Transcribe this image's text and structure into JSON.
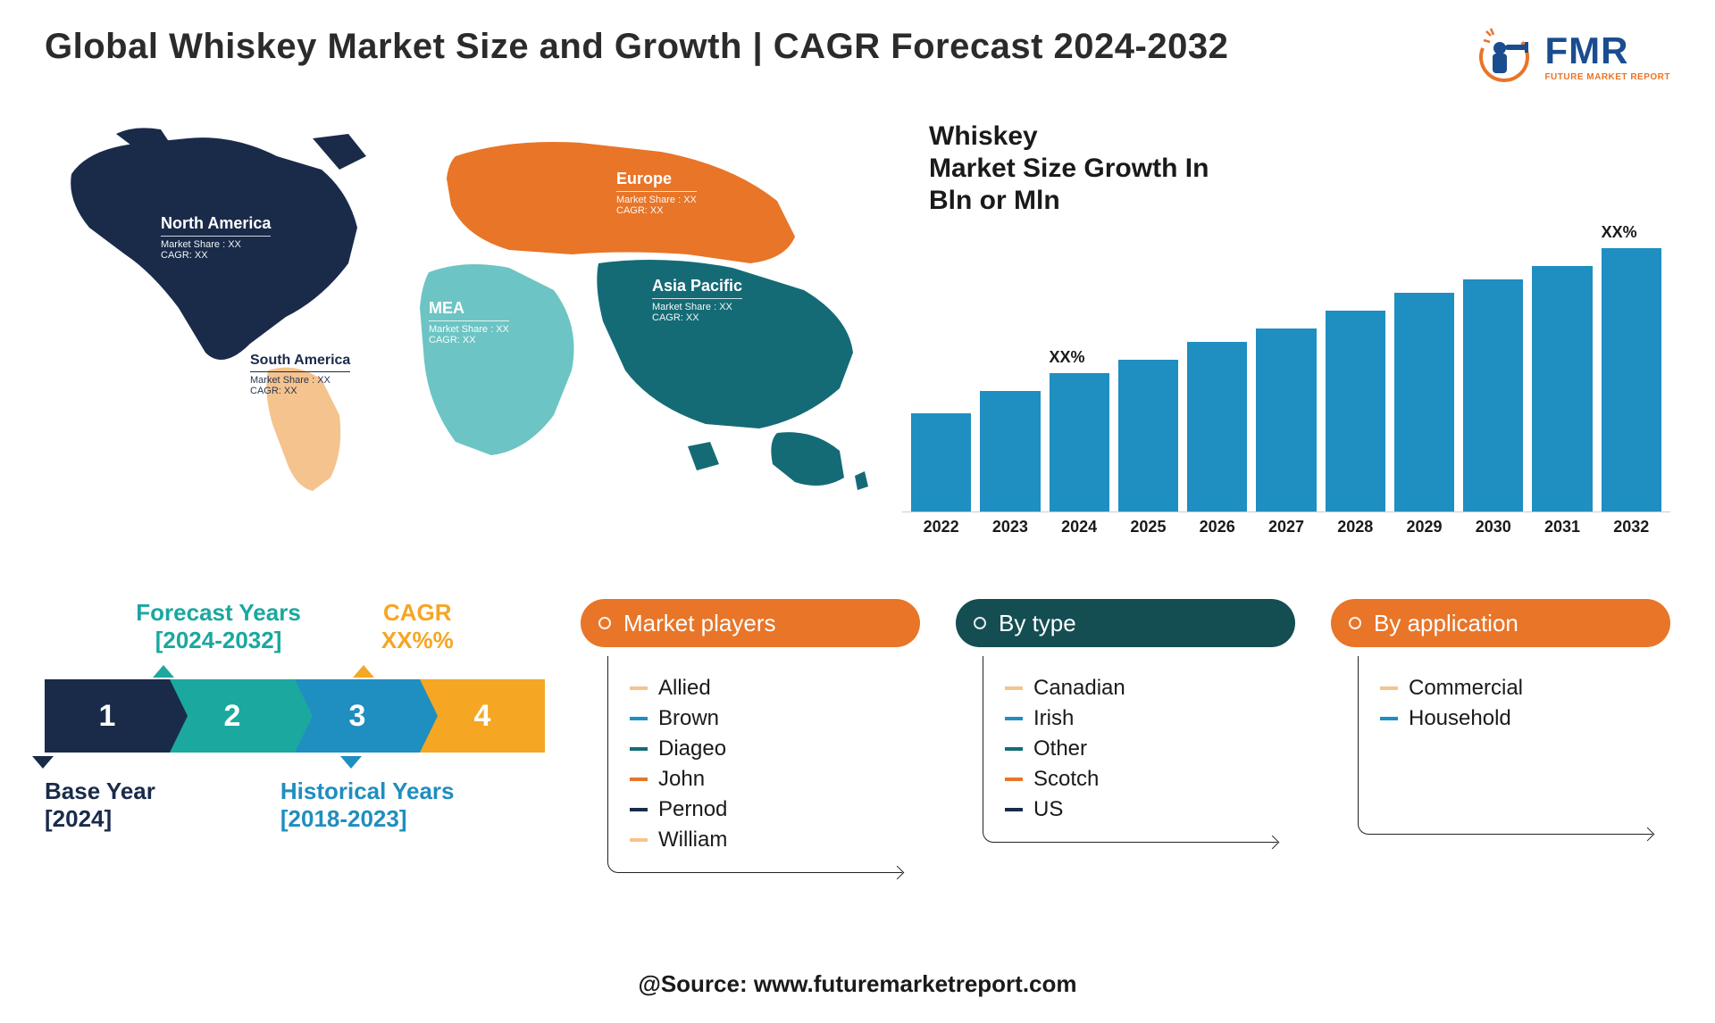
{
  "title": "Global Whiskey  Market Size and Growth | CAGR Forecast 2024-2032",
  "logo": {
    "fmr": "FMR",
    "sub": "FUTURE MARKET REPORT",
    "accent": "#e87528",
    "blue": "#1a4d8f"
  },
  "map": {
    "regions": [
      {
        "key": "na",
        "name": "North America",
        "share": "Market Share : XX",
        "cagr": "CAGR: XX",
        "color": "#1a2b4a",
        "nameFont": 18
      },
      {
        "key": "sa",
        "name": "South America",
        "share": "Market Share : XX",
        "cagr": "CAGR: XX",
        "color": "#f5c38e",
        "nameFont": 16
      },
      {
        "key": "eu",
        "name": "Europe",
        "share": "Market Share : XX",
        "cagr": "CAGR: XX",
        "color": "#e87528",
        "nameFont": 18
      },
      {
        "key": "mea",
        "name": "MEA",
        "share": "Market Share : XX",
        "cagr": "CAGR: XX",
        "color": "#6dc4c4",
        "nameFont": 18
      },
      {
        "key": "ap",
        "name": "Asia Pacific",
        "share": "Market Share : XX",
        "cagr": "CAGR: XX",
        "color": "#146b75",
        "nameFont": 18
      }
    ]
  },
  "chart": {
    "title_l1": "Whiskey",
    "title_l2": "Market Size Growth In",
    "title_l3": "Bln or Mln",
    "type": "bar",
    "categories": [
      "2022",
      "2023",
      "2024",
      "2025",
      "2026",
      "2027",
      "2028",
      "2029",
      "2030",
      "2031",
      "2032"
    ],
    "values": [
      110,
      135,
      155,
      170,
      190,
      205,
      225,
      245,
      260,
      275,
      295
    ],
    "ylim": [
      0,
      300
    ],
    "bar_color": "#1f8ec0",
    "annot_2024": "XX%",
    "annot_2032": "XX%",
    "label_fontsize": 18
  },
  "timeline": {
    "forecast_label": "Forecast Years",
    "forecast_range": "[2024-2032]",
    "cagr_label": "CAGR",
    "cagr_value": "XX%%",
    "nums": [
      "1",
      "2",
      "3",
      "4"
    ],
    "colors": [
      "#1a2b4a",
      "#1aa89f",
      "#1f8ec0",
      "#f5a623"
    ],
    "base_label": "Base Year",
    "base_range": "[2024]",
    "hist_label": "Historical Years",
    "hist_range": "[2018-2023]"
  },
  "sections": {
    "players": {
      "title": "Market players",
      "items": [
        {
          "label": "Allied",
          "color": "#f5c38e"
        },
        {
          "label": "Brown",
          "color": "#1f8ec0"
        },
        {
          "label": "Diageo",
          "color": "#146b75"
        },
        {
          "label": "John",
          "color": "#e87528"
        },
        {
          "label": "Pernod",
          "color": "#1a2b4a"
        },
        {
          "label": "William",
          "color": "#f5c38e"
        }
      ]
    },
    "type": {
      "title": "By type",
      "items": [
        {
          "label": "Canadian",
          "color": "#f5c38e"
        },
        {
          "label": "Irish",
          "color": "#1f8ec0"
        },
        {
          "label": "Other",
          "color": "#146b75"
        },
        {
          "label": "Scotch",
          "color": "#e87528"
        },
        {
          "label": "US",
          "color": "#1a2b4a"
        }
      ]
    },
    "application": {
      "title": "By application",
      "items": [
        {
          "label": "Commercial",
          "color": "#f5c38e"
        },
        {
          "label": "Household",
          "color": "#1f8ec0"
        }
      ]
    }
  },
  "source": "@Source: www.futuremarketreport.com"
}
